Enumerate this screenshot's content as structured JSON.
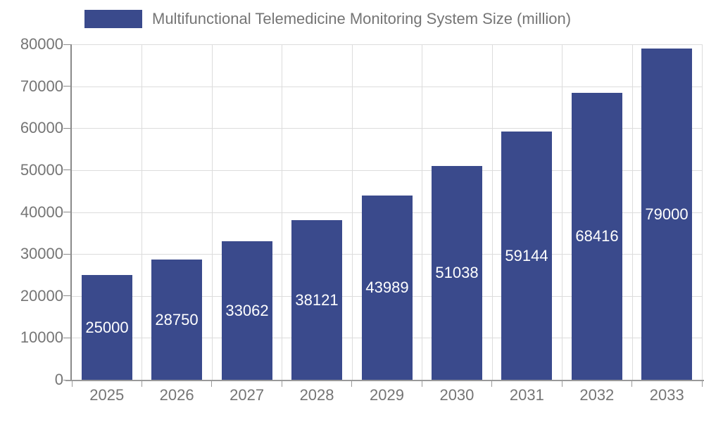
{
  "legend": {
    "label": "Multifunctional Telemedicine Monitoring System Size (million)"
  },
  "chart_data": {
    "type": "bar",
    "title": "Multifunctional Telemedicine Monitoring System Size (million)",
    "categories": [
      "2025",
      "2026",
      "2027",
      "2028",
      "2029",
      "2030",
      "2031",
      "2032",
      "2033"
    ],
    "values": [
      25000,
      28750,
      33062,
      38121,
      43989,
      51038,
      59144,
      68416,
      79000
    ],
    "series": [
      {
        "name": "Multifunctional Telemedicine Monitoring System Size (million)",
        "values": [
          25000,
          28750,
          33062,
          38121,
          43989,
          51038,
          59144,
          68416,
          79000
        ]
      }
    ],
    "xlabel": "",
    "ylabel": "",
    "ylim": [
      0,
      80000
    ],
    "yticks": [
      0,
      10000,
      20000,
      30000,
      40000,
      50000,
      60000,
      70000,
      80000
    ],
    "grid": true,
    "legend_position": "top-left",
    "value_labels": "inside-center-white",
    "colors": {
      "bar": "#3A4A8C",
      "value_label": "#ffffff",
      "axis_text": "#757575",
      "legend_text": "#757575",
      "gridline": "#dcdcdc",
      "axis_line": "#8a8a8a",
      "background": "#ffffff"
    }
  }
}
